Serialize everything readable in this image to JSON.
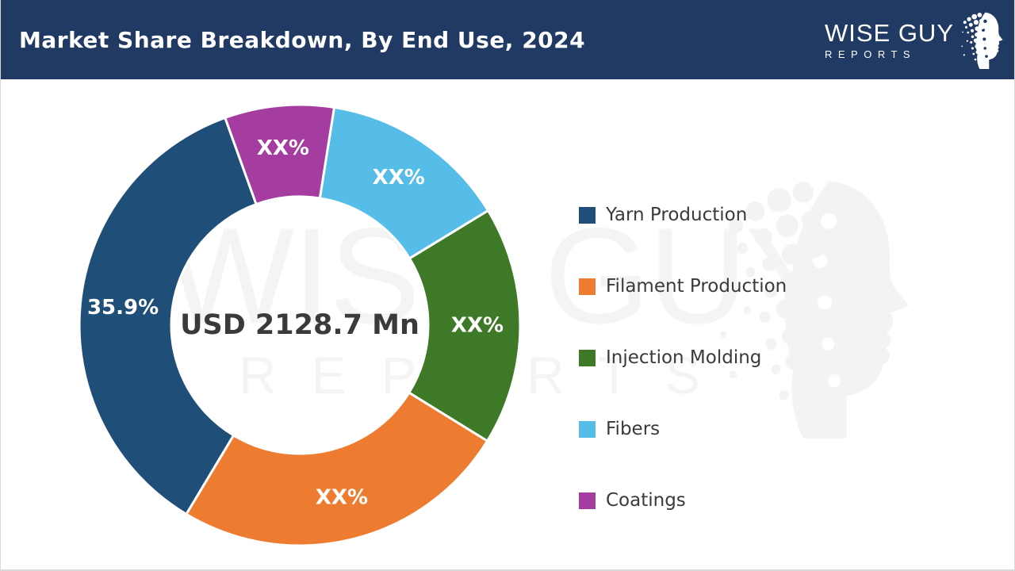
{
  "header": {
    "title": "Market Share Breakdown, By End Use, 2024",
    "bg_color": "#213a64",
    "logo": {
      "line1": "WISE GUY",
      "line2": "REPORTS"
    }
  },
  "watermark": {
    "line1": "WISE GUY",
    "line2": "REPORTS"
  },
  "chart_data": {
    "type": "donut",
    "title": "Market Share Breakdown, By End Use, 2024",
    "center_label": "USD 2128.7 Mn",
    "legend_position": "right",
    "start_angle_deg": 109.8,
    "direction": "counterclockwise",
    "outer_radius_px": 278,
    "inner_radius_px": 162,
    "segments": [
      {
        "name": "Yarn Production",
        "label": "35.9%",
        "value_pct": 35.9,
        "color": "#1f4e79"
      },
      {
        "name": "Filament Production",
        "label": "XX%",
        "value_pct": 24.8,
        "color": "#ed7c31"
      },
      {
        "name": "Injection Molding",
        "label": "XX%",
        "value_pct": 17.5,
        "color": "#3e7928"
      },
      {
        "name": "Fibers",
        "label": "XX%",
        "value_pct": 13.8,
        "color": "#56bde8"
      },
      {
        "name": "Coatings",
        "label": "XX%",
        "value_pct": 8.0,
        "color": "#a53c9f"
      }
    ]
  }
}
